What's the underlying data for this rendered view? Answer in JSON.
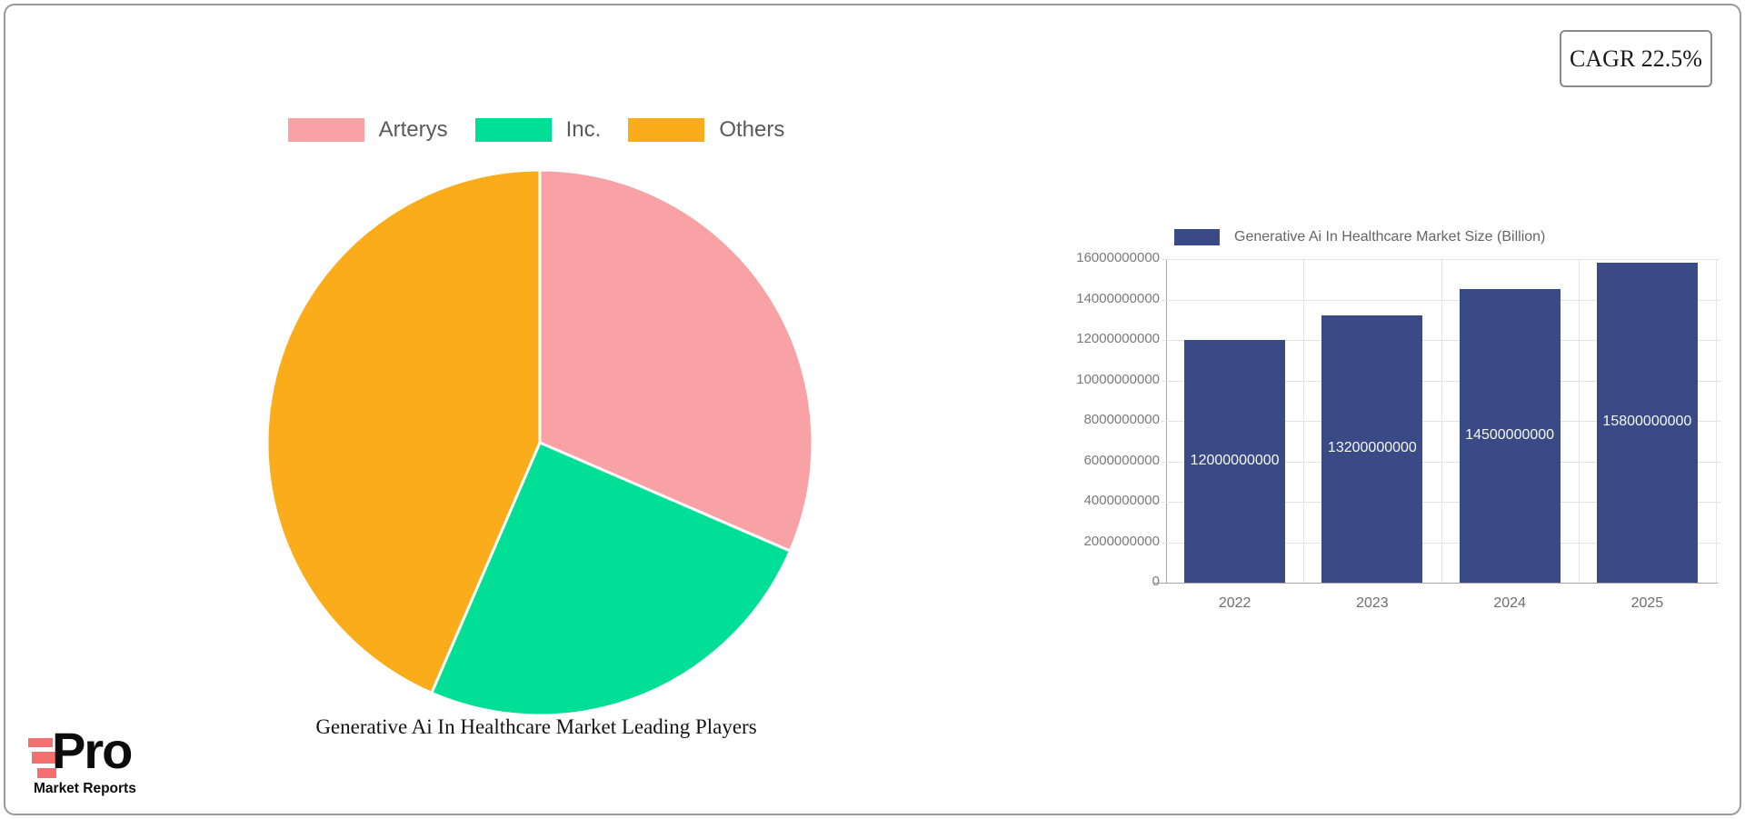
{
  "header": {
    "cagr": "CAGR 22.5%"
  },
  "logo": {
    "title": "Pro",
    "subtitle": "Market Reports"
  },
  "colors": {
    "pie_pink": "#f8a2a5",
    "pie_green": "#00df95",
    "pie_orange": "#fbac1b",
    "bar_navy": "#3a4a86",
    "legend_text": "#5a5a5a",
    "tick_text": "#7a7a7a"
  },
  "chart_data": [
    {
      "type": "pie",
      "title": "Generative Ai In Healthcare Market Leading Players",
      "labels": [
        "Arterys",
        "Inc.",
        "Others"
      ],
      "values": [
        31.5,
        25,
        43.5
      ],
      "unit": "percent-of-circle (estimated from arc angles)",
      "colors": [
        "#f8a2a5",
        "#00df95",
        "#fbac1b"
      ],
      "legend_position": "top",
      "start_angle_deg": -90,
      "direction": "clockwise"
    },
    {
      "type": "bar",
      "categories": [
        "2022",
        "2023",
        "2024",
        "2025"
      ],
      "series": [
        {
          "name": "Generative Ai In Healthcare Market Size (Billion)",
          "values": [
            12000000000,
            13200000000,
            14500000000,
            15800000000
          ]
        }
      ],
      "value_labels": [
        "12000000000",
        "13200000000",
        "14500000000",
        "15800000000"
      ],
      "ylim": [
        0,
        16000000000
      ],
      "ytick_step": 2000000000,
      "yticks": [
        0,
        2000000000,
        4000000000,
        6000000000,
        8000000000,
        10000000000,
        12000000000,
        14000000000,
        16000000000
      ],
      "bar_color": "#3a4a86",
      "grid": true,
      "legend_position": "top"
    }
  ]
}
